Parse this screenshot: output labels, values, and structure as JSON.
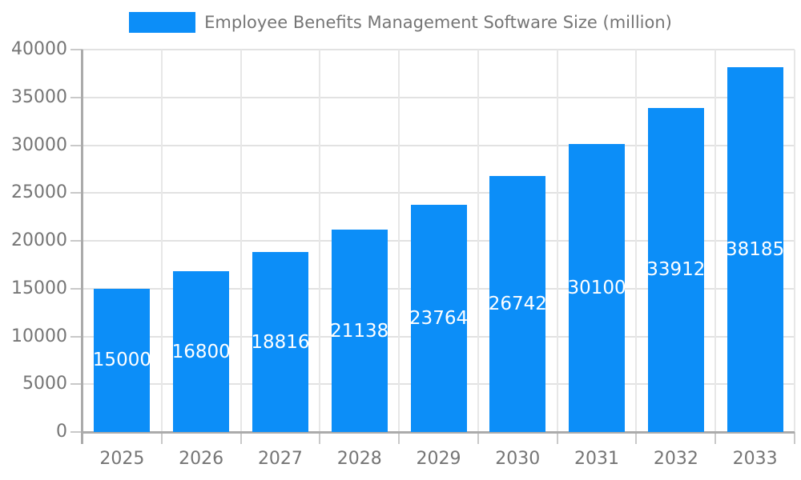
{
  "legend": {
    "label": "Employee Benefits Management Software Size (million)"
  },
  "colors": {
    "bar": "#0c8ef8",
    "axis_line": "#ababab",
    "gridline_horizontal": "#e2e2e2",
    "gridline_vertical": "#e7e7e7",
    "tick": "#c9c9c9",
    "axis_text": "#757575",
    "value_label_text": "#ffffff",
    "background": "#ffffff"
  },
  "chart_data": {
    "type": "bar",
    "title": "Employee Benefits Management Software Size (million)",
    "categories": [
      "2025",
      "2026",
      "2027",
      "2028",
      "2029",
      "2030",
      "2031",
      "2032",
      "2033"
    ],
    "values": [
      15000,
      16800,
      18816,
      21138,
      23764,
      26742,
      30100,
      33912,
      38185
    ],
    "xlabel": "",
    "ylabel": "",
    "ylim": [
      0,
      40000
    ],
    "yticks": [
      0,
      5000,
      10000,
      15000,
      20000,
      25000,
      30000,
      35000,
      40000
    ],
    "grid": true,
    "legend_position": "top-center",
    "value_labels": "inside-center"
  }
}
